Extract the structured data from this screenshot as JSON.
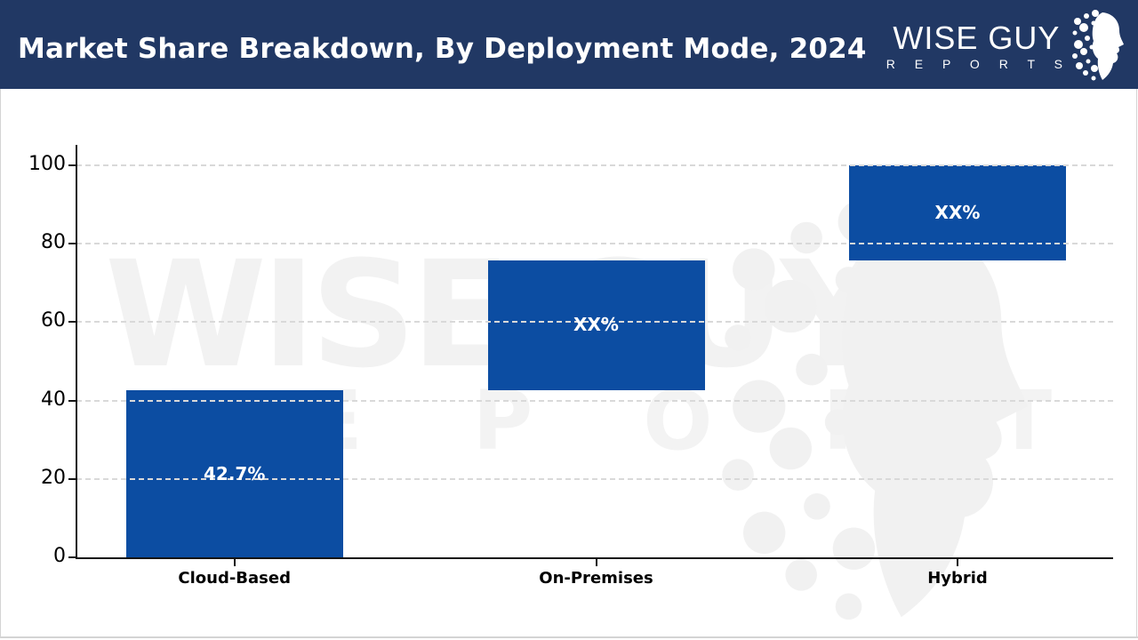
{
  "header": {
    "title": "Market Share Breakdown, By Deployment Mode, 2024",
    "bg_color": "#213864",
    "logo": {
      "wordmark": "WISE GUY",
      "subtext": "R E P O R T S"
    }
  },
  "watermark": {
    "line1": "WISE GUY",
    "line2": "R E P O R T S",
    "color": "#f2f2f2"
  },
  "chart_data": {
    "type": "bar",
    "subtype": "stacked_waterfall_floating_bars",
    "title": "Market Share Breakdown, By Deployment Mode, 2024",
    "categories": [
      "Cloud-Based",
      "On-Premises",
      "Hybrid"
    ],
    "bar_labels": [
      "42.7%",
      "XX%",
      "XX%"
    ],
    "segments": [
      [
        0,
        42.7
      ],
      [
        42.7,
        75.7
      ],
      [
        75.7,
        100
      ]
    ],
    "values_estimated": [
      42.7,
      33.0,
      24.3
    ],
    "ylim": [
      0,
      100
    ],
    "yticks": [
      0,
      20,
      40,
      60,
      80,
      100
    ],
    "grid": "horizontal_dashed",
    "grid_color": "#d9d9d9",
    "axis_color": "#141414",
    "bar_color": "#0c4da2",
    "bar_label_color": "#ffffff",
    "legend": "none"
  }
}
